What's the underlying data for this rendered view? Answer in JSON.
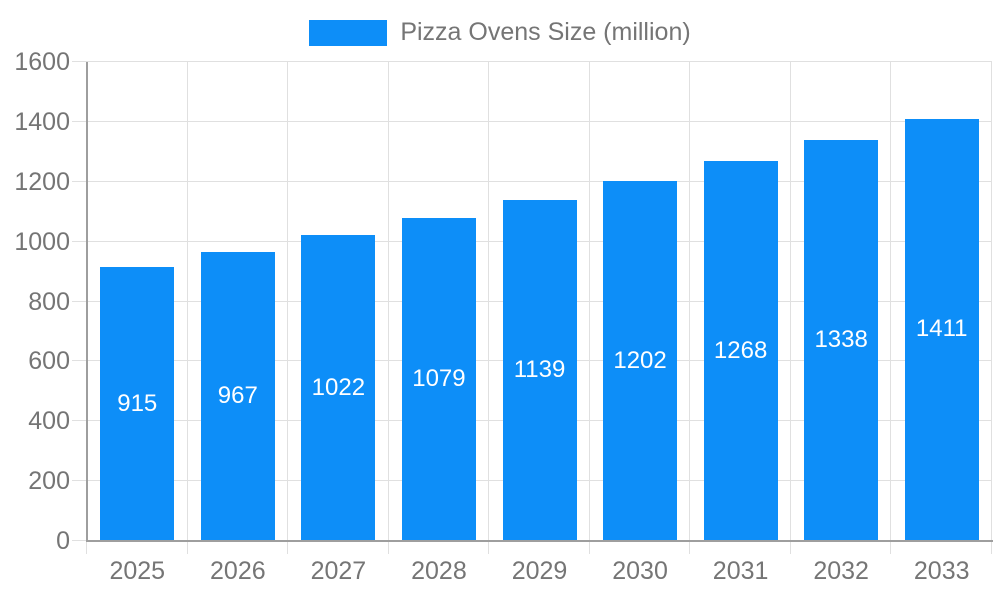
{
  "legend": {
    "label": "Pizza Ovens Size (million)"
  },
  "colors": {
    "bar": "#0d8ef8",
    "grid": "#e0e0e0",
    "axis": "#9e9e9e",
    "axis_text": "#757575",
    "bar_label_text": "#ffffff",
    "background": "#ffffff"
  },
  "chart_data": {
    "type": "bar",
    "title": "Pizza Ovens Size (million)",
    "categories": [
      "2025",
      "2026",
      "2027",
      "2028",
      "2029",
      "2030",
      "2031",
      "2032",
      "2033"
    ],
    "values": [
      915,
      967,
      1022,
      1079,
      1139,
      1202,
      1268,
      1338,
      1411
    ],
    "xlabel": "",
    "ylabel": "",
    "ylim": [
      0,
      1600
    ],
    "ytick_step": 200,
    "yticks": [
      0,
      200,
      400,
      600,
      800,
      1000,
      1200,
      1400,
      1600
    ],
    "grid": true,
    "legend_position": "top",
    "bar_labels_inside": true
  }
}
